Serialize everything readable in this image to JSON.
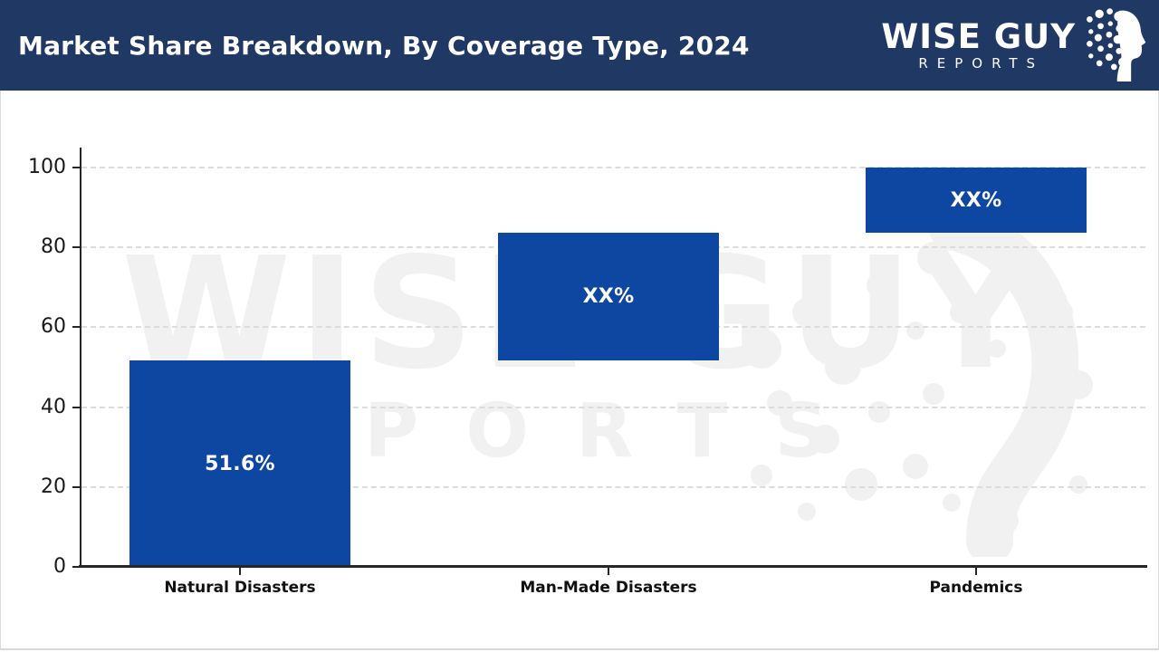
{
  "header": {
    "title": "Market Share Breakdown, By Coverage Type, 2024",
    "logo_line1": "WISE GUY",
    "logo_line2": "REPORTS"
  },
  "watermark": {
    "line1": "WISE GUY",
    "line2": "REPORTS"
  },
  "chart_data": {
    "type": "bar",
    "subtype": "waterfall-range-bars",
    "title": "Market Share Breakdown, By Coverage Type, 2024",
    "categories": [
      "Natural Disasters",
      "Man-Made Disasters",
      "Pandemics"
    ],
    "bars": [
      {
        "category": "Natural Disasters",
        "start": 0,
        "end": 51.6,
        "label": "51.6%"
      },
      {
        "category": "Man-Made Disasters",
        "start": 51.6,
        "end": 83.6,
        "label": "XX%"
      },
      {
        "category": "Pandemics",
        "start": 83.6,
        "end": 100,
        "label": "XX%"
      }
    ],
    "ylim": [
      0,
      100
    ],
    "yticks": [
      0,
      20,
      40,
      60,
      80,
      100
    ],
    "xlabel": "",
    "ylabel": "",
    "grid": "horizontal-dashed",
    "legend": "none",
    "bar_color": "#0d47a1",
    "bar_label_color": "#ffffff"
  },
  "colors": {
    "header_bg": "#1f3864",
    "header_text": "#ffffff",
    "axis": "#262626",
    "grid": "#dcdcdc",
    "tick_label": "#1a1a1a",
    "watermark": "#f1f1f1",
    "canvas_border": "#d9d9d9"
  }
}
